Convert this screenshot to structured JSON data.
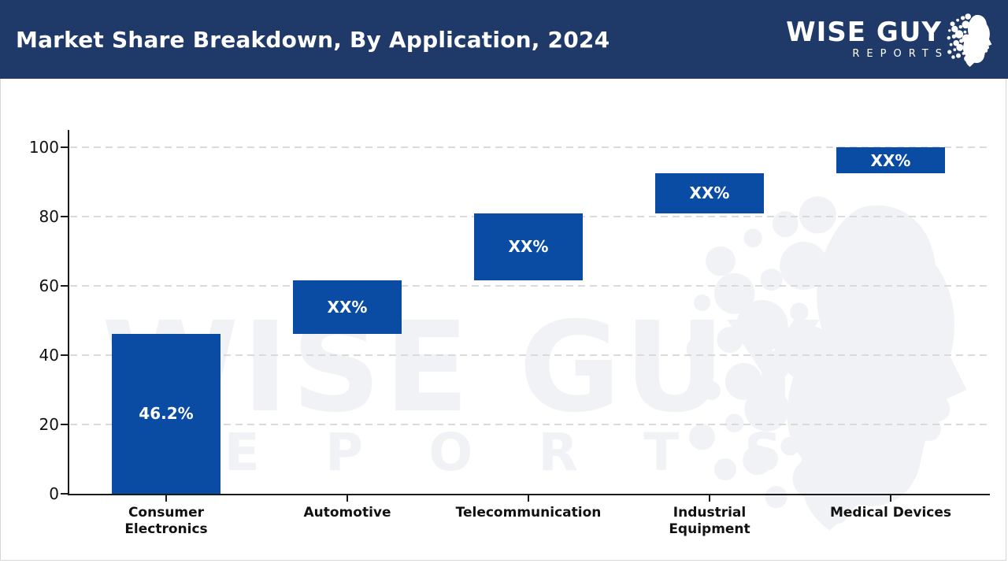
{
  "header": {
    "title": "Market Share Breakdown, By Application, 2024",
    "logo": {
      "line1": "WISE GUY",
      "line2": "REPORTS"
    }
  },
  "watermark": {
    "line1": "WISE GUY",
    "line2": "R E P O R T S"
  },
  "chart_data": {
    "type": "bar",
    "subtype": "floating-waterfall-bars",
    "title": "Market Share Breakdown, By Application, 2024",
    "xlabel": "",
    "ylabel": "",
    "ylim": [
      0,
      100
    ],
    "yticks": [
      0,
      20,
      40,
      60,
      80,
      100
    ],
    "grid": "horizontal-dashed",
    "legend": "none",
    "categories": [
      "Consumer Electronics",
      "Automotive",
      "Telecommunication",
      "Industrial Equipment",
      "Medical Devices"
    ],
    "categories_wrapped": [
      [
        "Consumer",
        "Electronics"
      ],
      [
        "Automotive"
      ],
      [
        "Telecommunication"
      ],
      [
        "Industrial",
        "Equipment"
      ],
      [
        "Medical Devices"
      ]
    ],
    "bars": [
      {
        "category": "Consumer Electronics",
        "start": 0,
        "end": 46.2,
        "label": "46.2%"
      },
      {
        "category": "Automotive",
        "start": 46.2,
        "end": 61.6,
        "label": "XX%"
      },
      {
        "category": "Telecommunication",
        "start": 61.6,
        "end": 81.0,
        "label": "XX%"
      },
      {
        "category": "Industrial Equipment",
        "start": 81.0,
        "end": 92.5,
        "label": "XX%"
      },
      {
        "category": "Medical Devices",
        "start": 92.5,
        "end": 100,
        "label": "XX%"
      }
    ],
    "colors": {
      "bar": "#0a4ba4",
      "bar_label": "#ffffff",
      "axis": "#1a1a1a",
      "gridline": "#dadada",
      "header_bg": "#1f3a68",
      "watermark": "#f1f2f5",
      "tick_label": "#111111"
    }
  }
}
